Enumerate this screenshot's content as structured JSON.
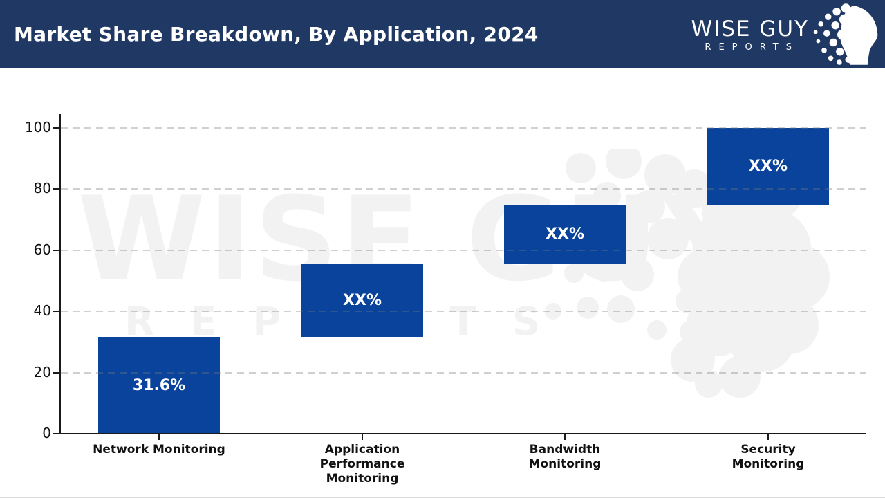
{
  "header": {
    "title": "Market Share Breakdown, By Application, 2024",
    "logo": {
      "line1": "WISE GUY",
      "line2": "REPORTS"
    }
  },
  "watermark": {
    "line1": "WISE GUY",
    "line2": "REPORTS"
  },
  "colors": {
    "header_bg": "#203864",
    "title_text": "#ffffff",
    "bar": "#0a439b",
    "bar_label": "#ffffff",
    "axis": "#1a1a1a",
    "tick_label": "#111111",
    "grid": "rgba(120,120,120,0.35)",
    "watermark": "#f2f2f2"
  },
  "chart_data": {
    "type": "bar",
    "subtype": "waterfall",
    "title": "Market Share Breakdown, By Application, 2024",
    "xlabel": "",
    "ylabel": "",
    "ylim": [
      0,
      100
    ],
    "yticks": [
      0,
      20,
      40,
      60,
      80,
      100
    ],
    "grid": {
      "horizontal": true,
      "style": "dashed"
    },
    "legend": null,
    "categories": [
      "Network Monitoring",
      "Application Performance Monitoring",
      "Bandwidth Monitoring",
      "Security Monitoring"
    ],
    "category_label_lines": [
      [
        "Network Monitoring"
      ],
      [
        "Application",
        "Performance",
        "Monitoring"
      ],
      [
        "Bandwidth",
        "Monitoring"
      ],
      [
        "Security",
        "Monitoring"
      ]
    ],
    "segments": [
      {
        "category": "Network Monitoring",
        "start": 0,
        "end": 31.6,
        "label": "31.6%"
      },
      {
        "category": "Application Performance Monitoring",
        "start": 31.6,
        "end": 55.5,
        "label": "XX%"
      },
      {
        "category": "Bandwidth Monitoring",
        "start": 55.5,
        "end": 75,
        "label": "XX%"
      },
      {
        "category": "Security Monitoring",
        "start": 75,
        "end": 100,
        "label": "XX%"
      }
    ],
    "bar_value_labels": [
      "31.6%",
      "XX%",
      "XX%",
      "XX%"
    ]
  }
}
